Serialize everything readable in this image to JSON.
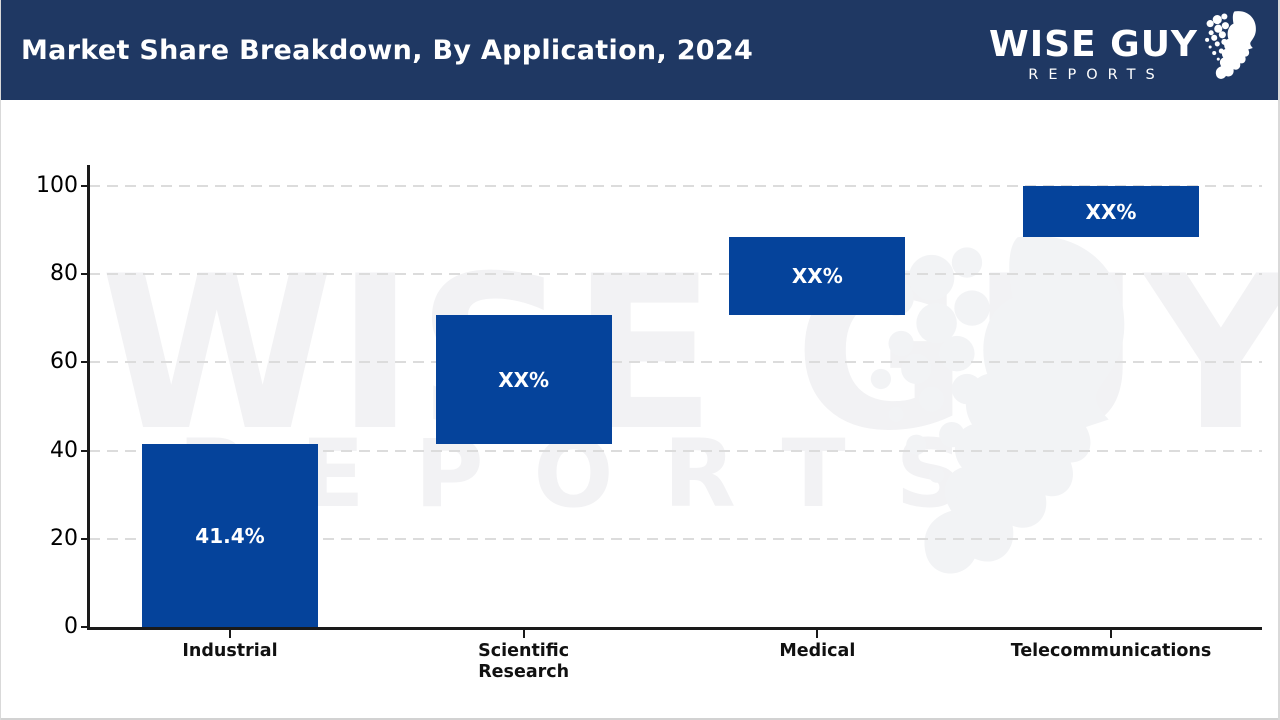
{
  "header": {
    "title": "Market Share Breakdown, By Application, 2024",
    "bg_color": "#1f3863",
    "logo": {
      "line1": "WISE GUY",
      "line2": "REPORTS"
    }
  },
  "watermark": {
    "line1": "WISE GUY",
    "line2": "REPORTS"
  },
  "chart_data": {
    "type": "bar",
    "subtype": "waterfall",
    "title": "Market Share Breakdown, By Application, 2024",
    "categories": [
      "Industrial",
      "Scientific\nResearch",
      "Medical",
      "Telecommunications"
    ],
    "segments": [
      {
        "category": "Industrial",
        "start": 0,
        "end": 41.4,
        "label": "41.4%"
      },
      {
        "category": "Scientific Research",
        "start": 41.4,
        "end": 70.8,
        "label": "XX%"
      },
      {
        "category": "Medical",
        "start": 70.8,
        "end": 88.4,
        "label": "XX%"
      },
      {
        "category": "Telecommunications",
        "start": 88.4,
        "end": 100,
        "label": "XX%"
      }
    ],
    "xlabel": "",
    "ylabel": "",
    "yticks": [
      0,
      20,
      40,
      60,
      80,
      100
    ],
    "ylim": [
      0,
      105
    ],
    "grid": "horizontal-dashed",
    "legend": "none",
    "bar_color": "#05439b",
    "label_color": "#ffffff",
    "axis_color": "#1a1a1a"
  }
}
